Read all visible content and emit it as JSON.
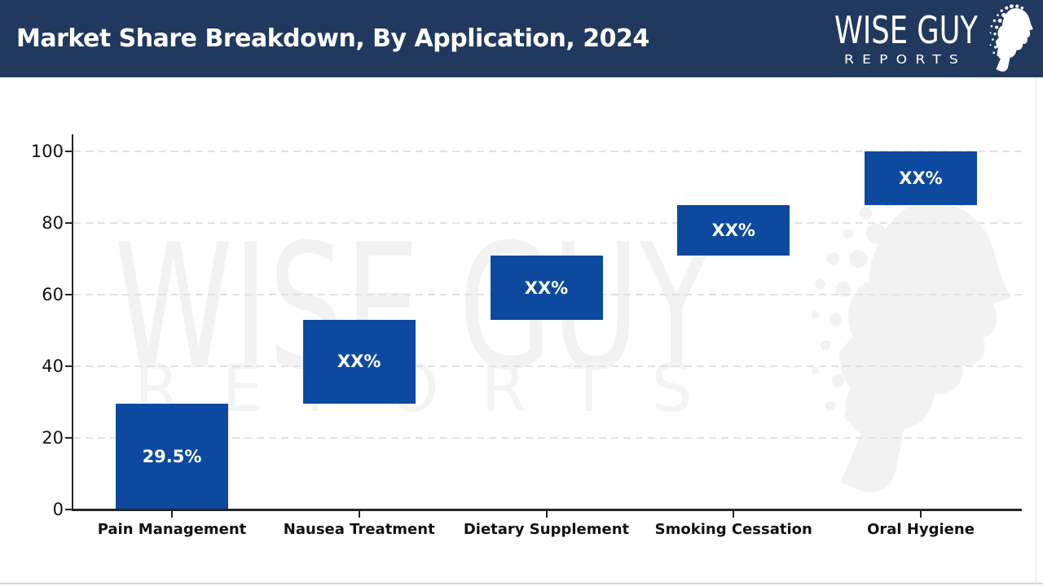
{
  "header": {
    "title": "Market Share Breakdown, By Application, 2024",
    "logo": {
      "primary": "WISE GUY",
      "secondary": "REPORTS"
    }
  },
  "watermark": {
    "primary": "WISE GUY",
    "secondary": [
      "R",
      "E",
      "P",
      "O",
      "R",
      "T",
      "S"
    ]
  },
  "chart_data": {
    "type": "bar",
    "subtype": "waterfall",
    "title": "Market Share Breakdown, By Application, 2024",
    "categories": [
      "Pain Management",
      "Nausea Treatment",
      "Dietary Supplement",
      "Smoking Cessation",
      "Oral Hygiene"
    ],
    "segments": [
      {
        "category": "Pain Management",
        "start": 0,
        "end": 29.5,
        "label": "29.5%"
      },
      {
        "category": "Nausea Treatment",
        "start": 29.5,
        "end": 53,
        "label": "XX%"
      },
      {
        "category": "Dietary Supplement",
        "start": 53,
        "end": 70.8,
        "label": "XX%"
      },
      {
        "category": "Smoking Cessation",
        "start": 71,
        "end": 85,
        "label": "XX%"
      },
      {
        "category": "Oral Hygiene",
        "start": 85,
        "end": 100,
        "label": "XX%"
      }
    ],
    "y_ticks": [
      0,
      20,
      40,
      60,
      80,
      100
    ],
    "ylim": [
      0,
      100
    ],
    "xlabel": "",
    "ylabel": "",
    "grid": "horizontal-dashed",
    "legend": "none",
    "bar_color": "#0D4A9F",
    "bar_label_color": "#FFFFFF"
  },
  "colors": {
    "header_bg": "#21395F",
    "bar": "#0D4A9F",
    "axis": "#262626",
    "grid": "#E2E2E2",
    "watermark": "#F2F2F2",
    "title_text": "#FFFFFF"
  }
}
